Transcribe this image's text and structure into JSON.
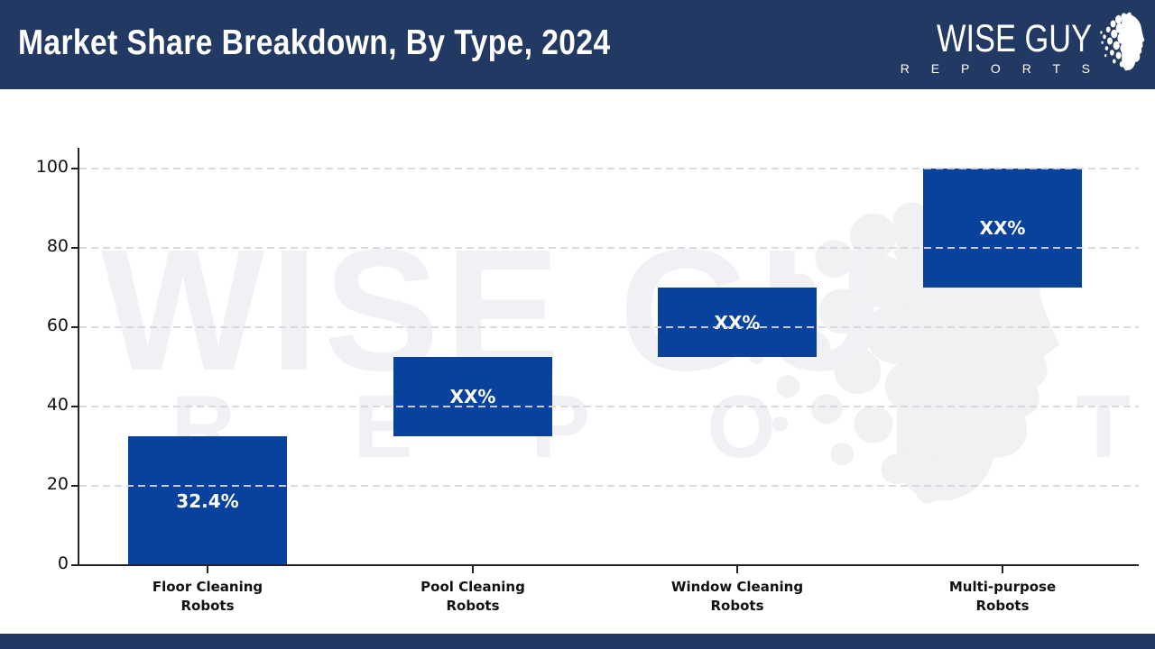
{
  "header": {
    "title": "Market Share Breakdown, By Type, 2024",
    "logo": {
      "line1": "WISE GUY",
      "line2": "R E P O R T S"
    }
  },
  "watermark": {
    "line1": "WISE GUY",
    "line2": "R E P O R T S"
  },
  "icons": {
    "logo_head": "head-profile-dots",
    "watermark_head": "head-profile-dots"
  },
  "colors": {
    "header_navy": "#223a63",
    "footer_navy": "#223a63",
    "bar_blue": "#09429c",
    "axis": "#222222",
    "gridline": "#d6d6da",
    "watermark_grey": "#f1f1f5",
    "bar_label_white": "#ffffff"
  },
  "chart_data": {
    "type": "bar",
    "subtype": "waterfall",
    "title": "Market Share Breakdown, By Type, 2024",
    "categories": [
      "Floor Cleaning\nRobots",
      "Pool Cleaning\nRobots",
      "Window Cleaning\nRobots",
      "Multi-purpose\nRobots"
    ],
    "segments": [
      {
        "category": "Floor Cleaning Robots",
        "start": 0,
        "end": 32.4,
        "value": 32.4,
        "label": "32.4%"
      },
      {
        "category": "Pool Cleaning Robots",
        "start": 32.4,
        "end": 52.4,
        "value": 20.0,
        "label": "XX%"
      },
      {
        "category": "Window Cleaning Robots",
        "start": 52.4,
        "end": 70.0,
        "value": 17.6,
        "label": "XX%"
      },
      {
        "category": "Multi-purpose Robots",
        "start": 70.0,
        "end": 100.0,
        "value": 30.0,
        "label": "XX%"
      }
    ],
    "yticks": [
      0,
      20,
      40,
      60,
      80,
      100
    ],
    "ylim": [
      0,
      100
    ],
    "xlabel": "",
    "ylabel": "",
    "grid": "horizontal-dashed",
    "legend": "none",
    "bar_color": "#09429c",
    "label_color": "#ffffff"
  }
}
